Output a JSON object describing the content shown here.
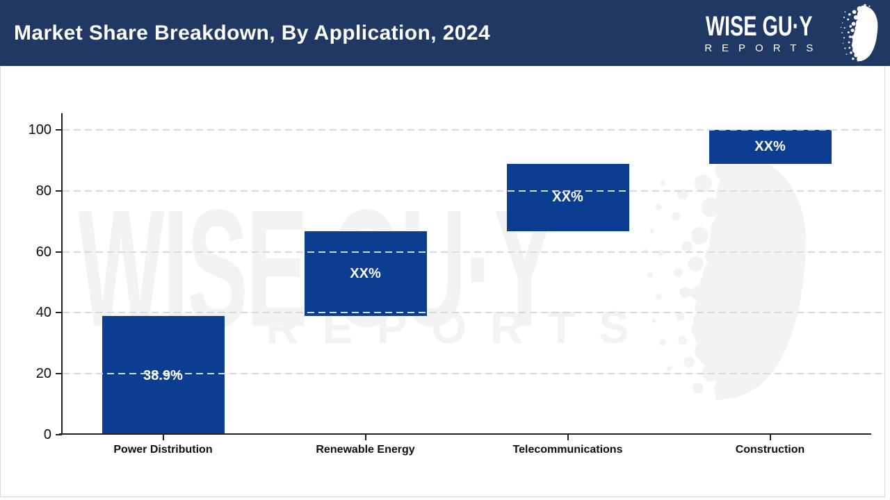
{
  "header": {
    "title": "Market Share Breakdown, By Application, 2024",
    "logo": {
      "wordmark": "WISE GU·Y",
      "subtitle": "REPORTS"
    }
  },
  "watermark": {
    "wordmark": "WISE GU·Y",
    "subtitle": "REPORTS"
  },
  "chart_data": {
    "type": "bar",
    "subtype": "waterfall",
    "title": "Market Share Breakdown, By Application, 2024",
    "categories": [
      "Power Distribution",
      "Renewable Energy",
      "Telecommunications",
      "Construction"
    ],
    "series": [
      {
        "name": "Market share (%)",
        "segments": [
          {
            "category": "Power Distribution",
            "start": 0,
            "end": 38.9,
            "value": 38.9,
            "label": "38.9%"
          },
          {
            "category": "Renewable Energy",
            "start": 38.9,
            "end": 66.7,
            "value": 27.8,
            "label": "XX%"
          },
          {
            "category": "Telecommunications",
            "start": 66.7,
            "end": 88.9,
            "value": 22.2,
            "label": "XX%"
          },
          {
            "category": "Construction",
            "start": 88.9,
            "end": 100,
            "value": 11.1,
            "label": "XX%"
          }
        ]
      }
    ],
    "xlabel": "",
    "ylabel": "",
    "ylim": [
      0,
      100
    ],
    "yticks": [
      0,
      20,
      40,
      60,
      80,
      100
    ],
    "grid": {
      "horizontal": true,
      "style": "dashed"
    },
    "legend": "none",
    "bar_color": "#0b3d91",
    "bar_label_color": "#ffffff"
  },
  "colors": {
    "header_bg": "#1f3864",
    "header_text": "#ffffff",
    "bar": "#0b3d91",
    "grid": "#d9d9d9",
    "axis": "#1f1f1f",
    "watermark": "#f2f2f3",
    "frame_border": "#d9d9d9"
  }
}
